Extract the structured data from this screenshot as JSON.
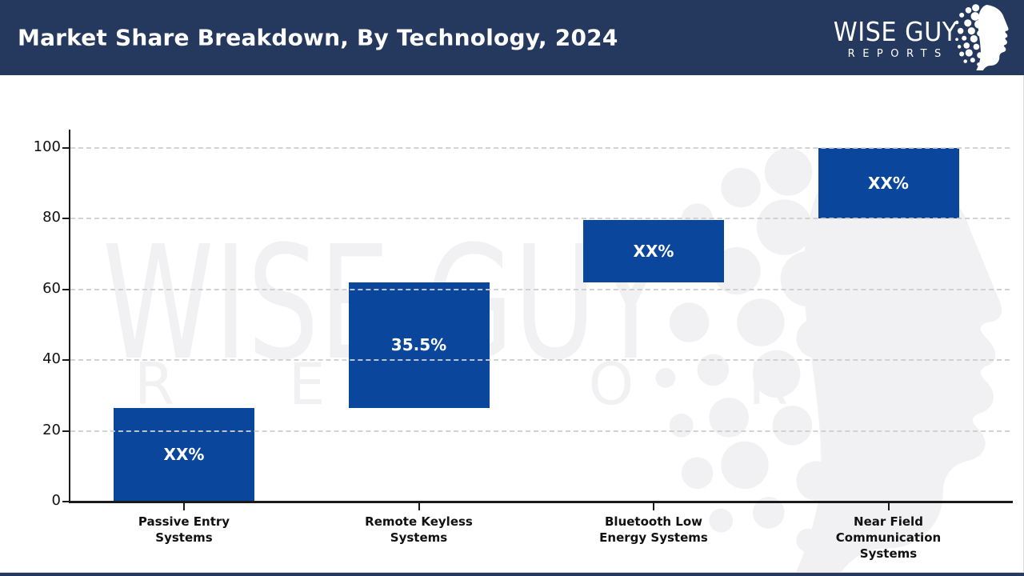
{
  "header": {
    "title": "Market Share Breakdown, By Technology, 2024",
    "logo": {
      "name": "WISE GUY",
      "sub": "REPORTS"
    }
  },
  "watermark": {
    "name": "WISE GUY",
    "sub": "R E P O R T S"
  },
  "chart_data": {
    "type": "bar",
    "subtype": "floating-waterfall",
    "title": "Market Share Breakdown, By Technology, 2024",
    "unit": "%",
    "categories": [
      [
        "Passive Entry",
        "Systems"
      ],
      [
        "Remote Keyless",
        "Systems"
      ],
      [
        "Bluetooth Low",
        "Energy Systems"
      ],
      [
        "Near Field",
        "Communication",
        "Systems"
      ]
    ],
    "bars": [
      {
        "label": "XX%",
        "start": 0,
        "end": 26.5
      },
      {
        "label": "35.5%",
        "start": 26.5,
        "end": 62
      },
      {
        "label": "XX%",
        "start": 62,
        "end": 79.5
      },
      {
        "label": "XX%",
        "start": 80,
        "end": 100
      }
    ],
    "ylim": [
      0,
      100
    ],
    "yticks": [
      0,
      20,
      40,
      60,
      80,
      100
    ],
    "xlabel": "",
    "ylabel": "",
    "legend": null,
    "grid": {
      "axis": "y",
      "style": "dashed",
      "over_bars": true
    },
    "bar_color": "#0a479c",
    "bar_label_color": "#ffffff",
    "gridline_color": "#cecece",
    "axis_color": "#1a1a1a",
    "tick_label_color": "#111111"
  },
  "colors": {
    "header_bg": "#25395f",
    "footer_bg": "#25395f",
    "page_bg": "#ffffff",
    "watermark": "#f1f1f3"
  }
}
